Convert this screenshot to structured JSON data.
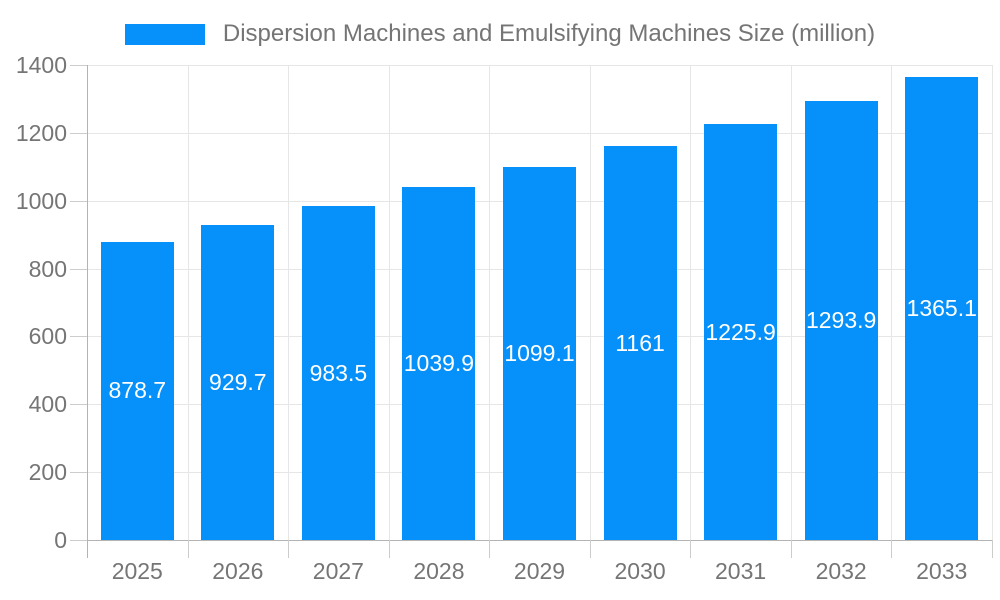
{
  "chart_data": {
    "type": "bar",
    "title": "Dispersion Machines and Emulsifying Machines Size (million)",
    "categories": [
      "2025",
      "2026",
      "2027",
      "2028",
      "2029",
      "2030",
      "2031",
      "2032",
      "2033"
    ],
    "series": [
      {
        "name": "Dispersion Machines and Emulsifying Machines Size (million)",
        "values": [
          878.7,
          929.7,
          983.5,
          1039.9,
          1099.1,
          1161,
          1225.9,
          1293.9,
          1365.1
        ],
        "value_labels": [
          "878.7",
          "929.7",
          "983.5",
          "1039.9",
          "1099.1",
          "1161",
          "1225.9",
          "1293.9",
          "1365.1"
        ]
      }
    ],
    "xlabel": "",
    "ylabel": "",
    "ylim": [
      0,
      1400
    ],
    "yticks": [
      0,
      200,
      400,
      600,
      800,
      1000,
      1200,
      1400
    ],
    "ytick_labels": [
      "0",
      "200",
      "400",
      "600",
      "800",
      "1000",
      "1200",
      "1400"
    ],
    "grid": true,
    "legend_position": "top",
    "value_label_position": "inside-center"
  },
  "colors": {
    "bar": "#0690FA",
    "axis_text": "#757575",
    "value_text": "#FFFFFF",
    "grid_line": "#E6E6E6",
    "axis_line": "#B3B3B3",
    "tick": "#CCCCCC",
    "background": "#FFFFFF"
  }
}
